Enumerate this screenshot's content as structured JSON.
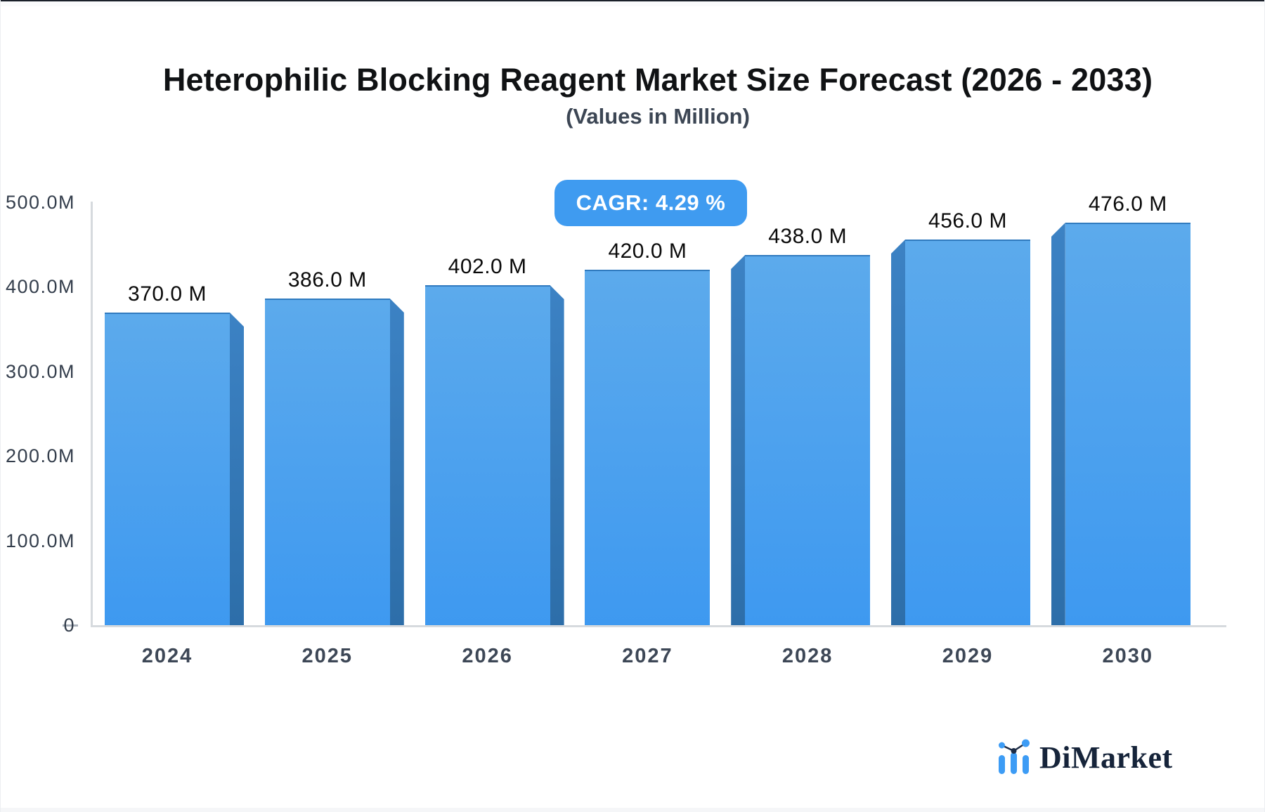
{
  "header": {
    "title": "Heterophilic Blocking Reagent Market Size Forecast (2026 - 2033)",
    "subtitle": "(Values in Million)",
    "cagr_label": "CAGR: 4.29 %"
  },
  "chart_data": {
    "type": "bar",
    "title": "Heterophilic Blocking Reagent Market Size Forecast (2026 - 2033)",
    "subtitle": "(Values in Million)",
    "unit": "Million",
    "categories": [
      "2024",
      "2025",
      "2026",
      "2027",
      "2028",
      "2029",
      "2030"
    ],
    "values": [
      370,
      386,
      402,
      420,
      438,
      456,
      476
    ],
    "value_labels": [
      "370.0 M",
      "386.0 M",
      "402.0 M",
      "420.0 M",
      "438.0 M",
      "456.0 M",
      "476.0 M"
    ],
    "cagr_percent": 4.29,
    "ylim": [
      0,
      500
    ],
    "y_tick_values": [
      500,
      400,
      300,
      200,
      100,
      0
    ],
    "y_tick_labels": [
      "500.0M",
      "400.0M",
      "300.0M",
      "200.0M",
      "100.0M",
      "0"
    ],
    "xlabel": "",
    "ylabel": "",
    "grid": false,
    "legend": false,
    "bar_style": "3d-beveled"
  },
  "colors": {
    "accent_blue": "#3f9bf0",
    "bar_face_top": "#5caaec",
    "bar_face_bottom": "#3e99f0",
    "bar_side_top": "#3c82c4",
    "bar_side_bottom": "#2d6ea9",
    "axis_line": "#d6dade",
    "axis_text": "#343e4c",
    "value_text": "#0a0a0a",
    "brand_navy": "#16243a"
  },
  "branding": {
    "logo_text": "DiMarket"
  }
}
